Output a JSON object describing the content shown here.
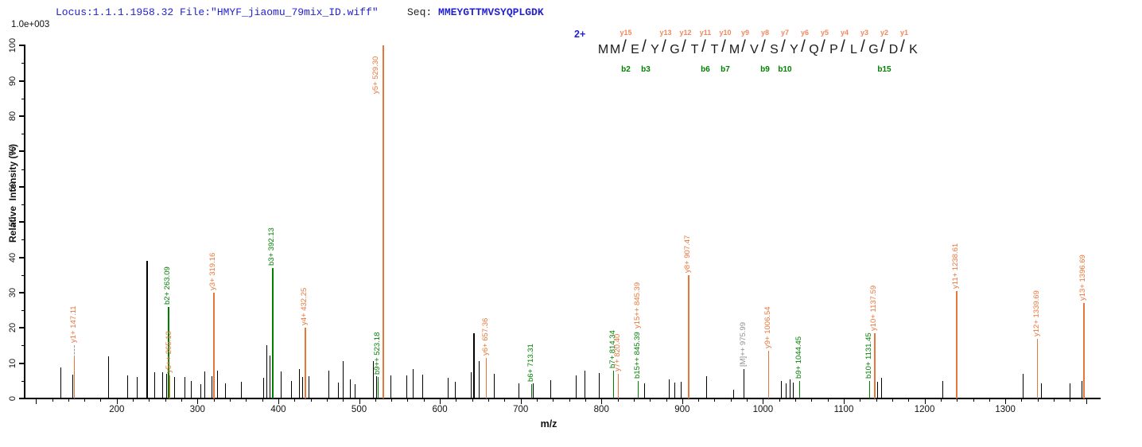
{
  "header": {
    "locus": "Locus:1.1.1.1958.32 File:\"HMYF_jiaomu_79mix_ID.wiff\"",
    "seq_label": "Seq: ",
    "sequence": "MMEYGTTMVSYQPLGDK"
  },
  "scale_note": "1.0e+003",
  "colors": {
    "header_blue": "#2222CE",
    "y_ion": "#E8763B",
    "y_ion_seq_label": "#F1885F",
    "b_ion": "#008000",
    "precursor_label": "#8F8F8F",
    "unassigned": "#000000"
  },
  "peptide": {
    "charge_label": "2+",
    "residues": [
      "M",
      "M",
      "E",
      "Y",
      "G",
      "T",
      "T",
      "M",
      "V",
      "S",
      "Y",
      "Q",
      "P",
      "L",
      "G",
      "D",
      "K"
    ],
    "boundaries": [
      {
        "after": 1,
        "slash": false
      },
      {
        "after": 2,
        "slash": true,
        "y": "y15",
        "b": "b2"
      },
      {
        "after": 3,
        "slash": true,
        "b": "b3"
      },
      {
        "after": 4,
        "slash": true,
        "y": "y13"
      },
      {
        "after": 5,
        "slash": true,
        "y": "y12"
      },
      {
        "after": 6,
        "slash": true,
        "y": "y11",
        "b": "b6"
      },
      {
        "after": 7,
        "slash": true,
        "y": "y10",
        "b": "b7"
      },
      {
        "after": 8,
        "slash": true,
        "y": "y9"
      },
      {
        "after": 9,
        "slash": true,
        "y": "y8",
        "b": "b9"
      },
      {
        "after": 10,
        "slash": true,
        "y": "y7",
        "b": "b10"
      },
      {
        "after": 11,
        "slash": true,
        "y": "y6"
      },
      {
        "after": 12,
        "slash": true,
        "y": "y5"
      },
      {
        "after": 13,
        "slash": true,
        "y": "y4"
      },
      {
        "after": 14,
        "slash": true,
        "y": "y3"
      },
      {
        "after": 15,
        "slash": true,
        "y": "y2",
        "b": "b15"
      },
      {
        "after": 16,
        "slash": true,
        "y": "y1"
      }
    ]
  },
  "chart_data": {
    "type": "bar",
    "subtype": "centroided-ms2-mass-spectrum",
    "title": "",
    "x_axis": {
      "label": "m/z",
      "min": 86,
      "max": 1418,
      "major_tick_step": 100,
      "minor_tick_step": 20,
      "tick_labels": [
        200,
        300,
        400,
        500,
        600,
        700,
        800,
        900,
        1000,
        1100,
        1200,
        1300
      ]
    },
    "y_axis": {
      "label": "Relative  Intensity (%)",
      "min": 0,
      "max": 100,
      "major_tick_step": 10,
      "minor_tick_step": 5,
      "scale_note": "1.0e+003"
    },
    "grid": false,
    "legend": false,
    "peaks": [
      {
        "mz": 130,
        "intensity": 8.8,
        "series": "unassigned"
      },
      {
        "mz": 145,
        "intensity": 6.7,
        "series": "unassigned"
      },
      {
        "mz": 147.11,
        "intensity": 11.5,
        "series": "y",
        "leader": true,
        "labels": [
          {
            "text": "y1+ 147.11",
            "series": "y"
          }
        ]
      },
      {
        "mz": 189,
        "intensity": 12,
        "series": "unassigned"
      },
      {
        "mz": 213,
        "intensity": 6.5,
        "series": "unassigned"
      },
      {
        "mz": 225,
        "intensity": 6,
        "series": "unassigned"
      },
      {
        "mz": 237,
        "intensity": 39,
        "series": "unassigned"
      },
      {
        "mz": 246,
        "intensity": 7.4,
        "series": "unassigned"
      },
      {
        "mz": 256,
        "intensity": 7.5,
        "series": "unassigned"
      },
      {
        "mz": 261,
        "intensity": 7,
        "series": "unassigned"
      },
      {
        "mz": 263.09,
        "intensity": 26,
        "series": "b",
        "labels": [
          {
            "text": "b2+ 263.09",
            "series": "b"
          }
        ]
      },
      {
        "mz": 265.13,
        "intensity": 6.5,
        "series": "y",
        "labels": [
          {
            "text": "y5++ 265.13",
            "series": "y"
          }
        ]
      },
      {
        "mz": 271,
        "intensity": 6,
        "series": "unassigned"
      },
      {
        "mz": 284,
        "intensity": 6,
        "series": "unassigned"
      },
      {
        "mz": 292,
        "intensity": 5,
        "series": "unassigned"
      },
      {
        "mz": 304,
        "intensity": 4,
        "series": "unassigned"
      },
      {
        "mz": 308,
        "intensity": 7.7,
        "series": "unassigned"
      },
      {
        "mz": 317,
        "intensity": 6.3,
        "series": "unassigned"
      },
      {
        "mz": 319.16,
        "intensity": 30,
        "series": "y",
        "labels": [
          {
            "text": "y3+ 319.16",
            "series": "y"
          }
        ]
      },
      {
        "mz": 324,
        "intensity": 7.8,
        "series": "unassigned"
      },
      {
        "mz": 334,
        "intensity": 4.3,
        "series": "unassigned"
      },
      {
        "mz": 354,
        "intensity": 4.8,
        "series": "unassigned"
      },
      {
        "mz": 381,
        "intensity": 5.8,
        "series": "unassigned"
      },
      {
        "mz": 385,
        "intensity": 15.2,
        "series": "unassigned"
      },
      {
        "mz": 389,
        "intensity": 12.1,
        "series": "unassigned"
      },
      {
        "mz": 392.13,
        "intensity": 37,
        "series": "b",
        "labels": [
          {
            "text": "b3+ 392.13",
            "series": "b"
          }
        ]
      },
      {
        "mz": 403,
        "intensity": 7.6,
        "series": "unassigned"
      },
      {
        "mz": 416,
        "intensity": 5,
        "series": "unassigned"
      },
      {
        "mz": 426,
        "intensity": 8.4,
        "series": "unassigned"
      },
      {
        "mz": 430,
        "intensity": 6,
        "series": "unassigned"
      },
      {
        "mz": 432.25,
        "intensity": 20,
        "series": "y",
        "labels": [
          {
            "text": "y4+ 432.25",
            "series": "y"
          }
        ]
      },
      {
        "mz": 437,
        "intensity": 6.3,
        "series": "unassigned"
      },
      {
        "mz": 462,
        "intensity": 8,
        "series": "unassigned"
      },
      {
        "mz": 474,
        "intensity": 4.4,
        "series": "unassigned"
      },
      {
        "mz": 480,
        "intensity": 10.7,
        "series": "unassigned"
      },
      {
        "mz": 489,
        "intensity": 5.5,
        "series": "unassigned"
      },
      {
        "mz": 495,
        "intensity": 4,
        "series": "unassigned"
      },
      {
        "mz": 517,
        "intensity": 10.7,
        "series": "unassigned"
      },
      {
        "mz": 521,
        "intensity": 6.3,
        "series": "unassigned"
      },
      {
        "mz": 523.18,
        "intensity": 6,
        "series": "b",
        "labels": [
          {
            "text": "b9++ 523.18",
            "series": "b"
          }
        ]
      },
      {
        "mz": 529.3,
        "intensity": 100,
        "series": "y",
        "labels": [
          {
            "text": "y5+ 529.30",
            "series": "y"
          }
        ]
      },
      {
        "mz": 539,
        "intensity": 6.5,
        "series": "unassigned"
      },
      {
        "mz": 559,
        "intensity": 6.5,
        "series": "unassigned"
      },
      {
        "mz": 566,
        "intensity": 8.3,
        "series": "unassigned"
      },
      {
        "mz": 578,
        "intensity": 6.7,
        "series": "unassigned"
      },
      {
        "mz": 610,
        "intensity": 5.8,
        "series": "unassigned"
      },
      {
        "mz": 619,
        "intensity": 4.8,
        "series": "unassigned"
      },
      {
        "mz": 638,
        "intensity": 7.5,
        "series": "unassigned"
      },
      {
        "mz": 641,
        "intensity": 18.5,
        "series": "unassigned"
      },
      {
        "mz": 648,
        "intensity": 10.5,
        "series": "unassigned"
      },
      {
        "mz": 657.36,
        "intensity": 11.5,
        "series": "y",
        "labels": [
          {
            "text": "y6+ 657.36",
            "series": "y"
          }
        ]
      },
      {
        "mz": 667,
        "intensity": 7,
        "series": "unassigned"
      },
      {
        "mz": 697,
        "intensity": 4.2,
        "series": "unassigned"
      },
      {
        "mz": 713.31,
        "intensity": 4,
        "series": "b",
        "labels": [
          {
            "text": "b6+ 713.31",
            "series": "b"
          }
        ]
      },
      {
        "mz": 715,
        "intensity": 4.2,
        "series": "unassigned"
      },
      {
        "mz": 737,
        "intensity": 5.1,
        "series": "unassigned"
      },
      {
        "mz": 768,
        "intensity": 6.5,
        "series": "unassigned"
      },
      {
        "mz": 779,
        "intensity": 8,
        "series": "unassigned"
      },
      {
        "mz": 797,
        "intensity": 7.2,
        "series": "unassigned"
      },
      {
        "mz": 814.34,
        "intensity": 8,
        "series": "b",
        "labels": [
          {
            "text": "b7+ 814.34",
            "series": "b"
          }
        ]
      },
      {
        "mz": 820.4,
        "intensity": 7,
        "series": "y",
        "labels": [
          {
            "text": "y7+ 820.40",
            "series": "y"
          }
        ]
      },
      {
        "mz": 845.39,
        "intensity": 5,
        "series": "b",
        "labels": [
          {
            "text": "b15++ 845.39",
            "series": "b"
          },
          {
            "text": "y15++ 845.39",
            "series": "y"
          }
        ]
      },
      {
        "mz": 853,
        "intensity": 4.2,
        "series": "unassigned"
      },
      {
        "mz": 883,
        "intensity": 5.4,
        "series": "unassigned"
      },
      {
        "mz": 890,
        "intensity": 4.5,
        "series": "unassigned"
      },
      {
        "mz": 898,
        "intensity": 4.8,
        "series": "unassigned"
      },
      {
        "mz": 907.47,
        "intensity": 35,
        "series": "y",
        "labels": [
          {
            "text": "y8+ 907.47",
            "series": "y"
          }
        ]
      },
      {
        "mz": 930,
        "intensity": 6.2,
        "series": "unassigned"
      },
      {
        "mz": 963,
        "intensity": 2.5,
        "series": "unassigned"
      },
      {
        "mz": 975.99,
        "intensity": 8.4,
        "series": "precursor",
        "labels": [
          {
            "text": "[M]++ 975.99",
            "series": "precursor"
          }
        ]
      },
      {
        "mz": 1006.54,
        "intensity": 13.5,
        "series": "y",
        "labels": [
          {
            "text": "y9+ 1006.54",
            "series": "y"
          }
        ]
      },
      {
        "mz": 1022,
        "intensity": 4.9,
        "series": "unassigned"
      },
      {
        "mz": 1028,
        "intensity": 4.2,
        "series": "unassigned"
      },
      {
        "mz": 1033,
        "intensity": 5.5,
        "series": "unassigned"
      },
      {
        "mz": 1037,
        "intensity": 4.5,
        "series": "unassigned"
      },
      {
        "mz": 1044.45,
        "intensity": 5,
        "series": "b",
        "labels": [
          {
            "text": "b9+ 1044.45",
            "series": "b"
          }
        ]
      },
      {
        "mz": 1131.45,
        "intensity": 5,
        "series": "b",
        "labels": [
          {
            "text": "b10+ 1131.45",
            "series": "b"
          }
        ]
      },
      {
        "mz": 1137.59,
        "intensity": 18.5,
        "series": "y",
        "labels": [
          {
            "text": "y10+ 1137.59",
            "series": "y"
          }
        ]
      },
      {
        "mz": 1141,
        "intensity": 4.8,
        "series": "unassigned"
      },
      {
        "mz": 1146,
        "intensity": 5.8,
        "series": "unassigned"
      },
      {
        "mz": 1222,
        "intensity": 5,
        "series": "unassigned"
      },
      {
        "mz": 1238.61,
        "intensity": 30.5,
        "series": "y",
        "labels": [
          {
            "text": "y11+ 1238.61",
            "series": "y"
          }
        ]
      },
      {
        "mz": 1322,
        "intensity": 7,
        "series": "unassigned"
      },
      {
        "mz": 1339.69,
        "intensity": 17,
        "series": "y",
        "labels": [
          {
            "text": "y12+ 1339.69",
            "series": "y"
          }
        ]
      },
      {
        "mz": 1344,
        "intensity": 4.2,
        "series": "unassigned"
      },
      {
        "mz": 1380,
        "intensity": 4.3,
        "series": "unassigned"
      },
      {
        "mz": 1394,
        "intensity": 5,
        "series": "unassigned"
      },
      {
        "mz": 1396.69,
        "intensity": 27,
        "series": "y",
        "labels": [
          {
            "text": "y13+ 1396.69",
            "series": "y"
          }
        ]
      }
    ]
  }
}
